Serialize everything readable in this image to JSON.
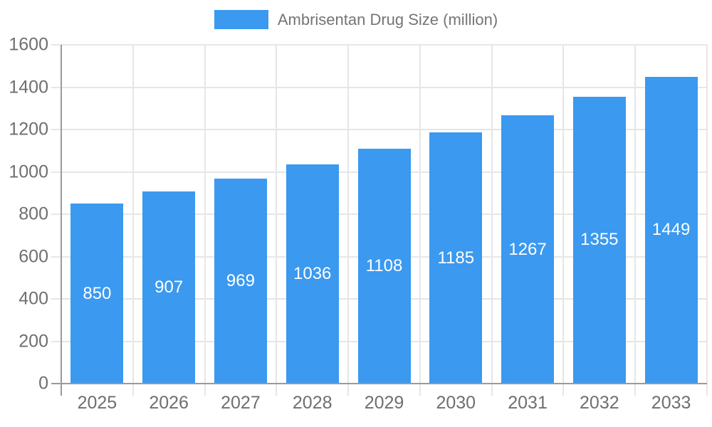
{
  "legend": {
    "label": "Ambrisentan Drug Size (million)"
  },
  "chart_data": {
    "type": "bar",
    "title": "Ambrisentan Drug Size (million)",
    "series_name": "Ambrisentan Drug Size (million)",
    "categories": [
      "2025",
      "2026",
      "2027",
      "2028",
      "2029",
      "2030",
      "2031",
      "2032",
      "2033"
    ],
    "values": [
      850,
      907,
      969,
      1036,
      1108,
      1185,
      1267,
      1355,
      1449
    ],
    "bar_labels": [
      "850",
      "907",
      "969",
      "1036",
      "1108",
      "1185",
      "1267",
      "1355",
      "1449"
    ],
    "xlabel": "",
    "ylabel": "",
    "ylim": [
      0,
      1600
    ],
    "ytick_step": 200,
    "yticks": [
      0,
      200,
      400,
      600,
      800,
      1000,
      1200,
      1400,
      1600
    ],
    "grid": true,
    "legend_position": "top"
  },
  "colors": {
    "bar": "#3b99ef",
    "grid": "#e6e6e6",
    "axis": "#9a9a9a",
    "axis_text": "#6f6f6f",
    "legend_text": "#757575",
    "bar_label": "#ffffff",
    "background": "#ffffff"
  }
}
